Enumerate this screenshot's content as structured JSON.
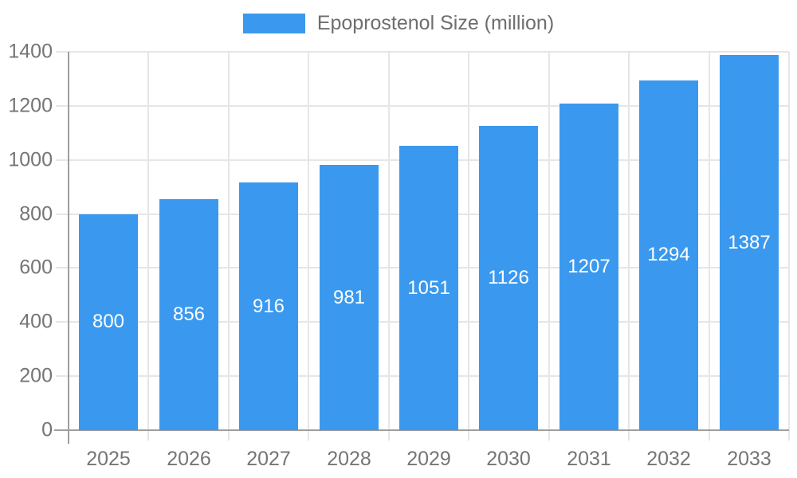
{
  "chart_data": {
    "type": "bar",
    "title": "Epoprostenol Size (million)",
    "categories": [
      "2025",
      "2026",
      "2027",
      "2028",
      "2029",
      "2030",
      "2031",
      "2032",
      "2033"
    ],
    "series": [
      {
        "name": "Epoprostenol Size (million)",
        "values": [
          800,
          856,
          916,
          981,
          1051,
          1126,
          1207,
          1294,
          1387
        ]
      }
    ],
    "value_labels": [
      "800",
      "856",
      "916",
      "981",
      "1051",
      "1126",
      "1207",
      "1294",
      "1387"
    ],
    "xlabel": "",
    "ylabel": "",
    "ylim": [
      0,
      1400
    ],
    "y_tick_step": 200,
    "y_tick_labels": [
      "0",
      "200",
      "400",
      "600",
      "800",
      "1000",
      "1200",
      "1400"
    ],
    "grid": true,
    "legend_position": "top-center",
    "colors": {
      "bar": "#3A99EE",
      "value_label_text": "#ffffff",
      "tick_text": "#757575",
      "legend_text": "#6e6e6e",
      "gridline": "#e6e6e6",
      "axis_line": "#9e9e9e"
    }
  }
}
